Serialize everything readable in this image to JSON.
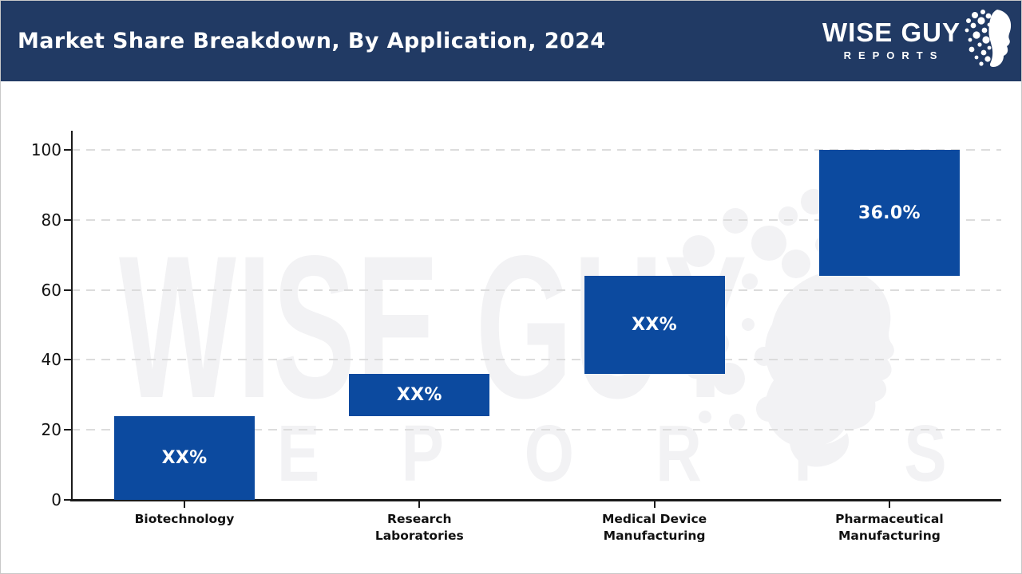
{
  "header": {
    "title": "Market Share Breakdown, By Application, 2024",
    "logo": {
      "line1": "WISE GUY",
      "line2": "REPORTS"
    }
  },
  "watermark": {
    "line1": "WISE GUY",
    "line2": "R E P O R T S"
  },
  "chart_data": {
    "type": "bar",
    "subtype": "floating-waterfall",
    "title": "Market Share Breakdown, By Application, 2024",
    "xlabel": "",
    "ylabel": "",
    "ylim": [
      0,
      105
    ],
    "yticks": [
      0,
      20,
      40,
      60,
      80,
      100
    ],
    "grid": {
      "horizontal": true,
      "style": "dashed"
    },
    "legend": null,
    "categories": [
      "Biotechnology",
      "Research Laboratories",
      "Medical Device Manufacturing",
      "Pharmaceutical Manufacturing"
    ],
    "category_lines": [
      [
        "Biotechnology"
      ],
      [
        "Research",
        "Laboratories"
      ],
      [
        "Medical Device",
        "Manufacturing"
      ],
      [
        "Pharmaceutical",
        "Manufacturing"
      ]
    ],
    "segments": [
      {
        "category": "Biotechnology",
        "start": 0,
        "end": 24,
        "size": 24,
        "label": "XX%"
      },
      {
        "category": "Research Laboratories",
        "start": 24,
        "end": 36,
        "size": 12,
        "label": "XX%"
      },
      {
        "category": "Medical Device Manufacturing",
        "start": 36,
        "end": 64,
        "size": 28,
        "label": "XX%"
      },
      {
        "category": "Pharmaceutical Manufacturing",
        "start": 64,
        "end": 100,
        "size": 36,
        "label": "36.0%"
      }
    ]
  },
  "colors": {
    "header_bg": "#213a64",
    "bar": "#0c4a9f",
    "bar_label": "#ffffff",
    "grid": "#dcdcdc",
    "axis": "#1a1a1a",
    "tick_text": "#111111",
    "watermark": "#f2f2f4",
    "page_border": "#c9c9c9"
  }
}
